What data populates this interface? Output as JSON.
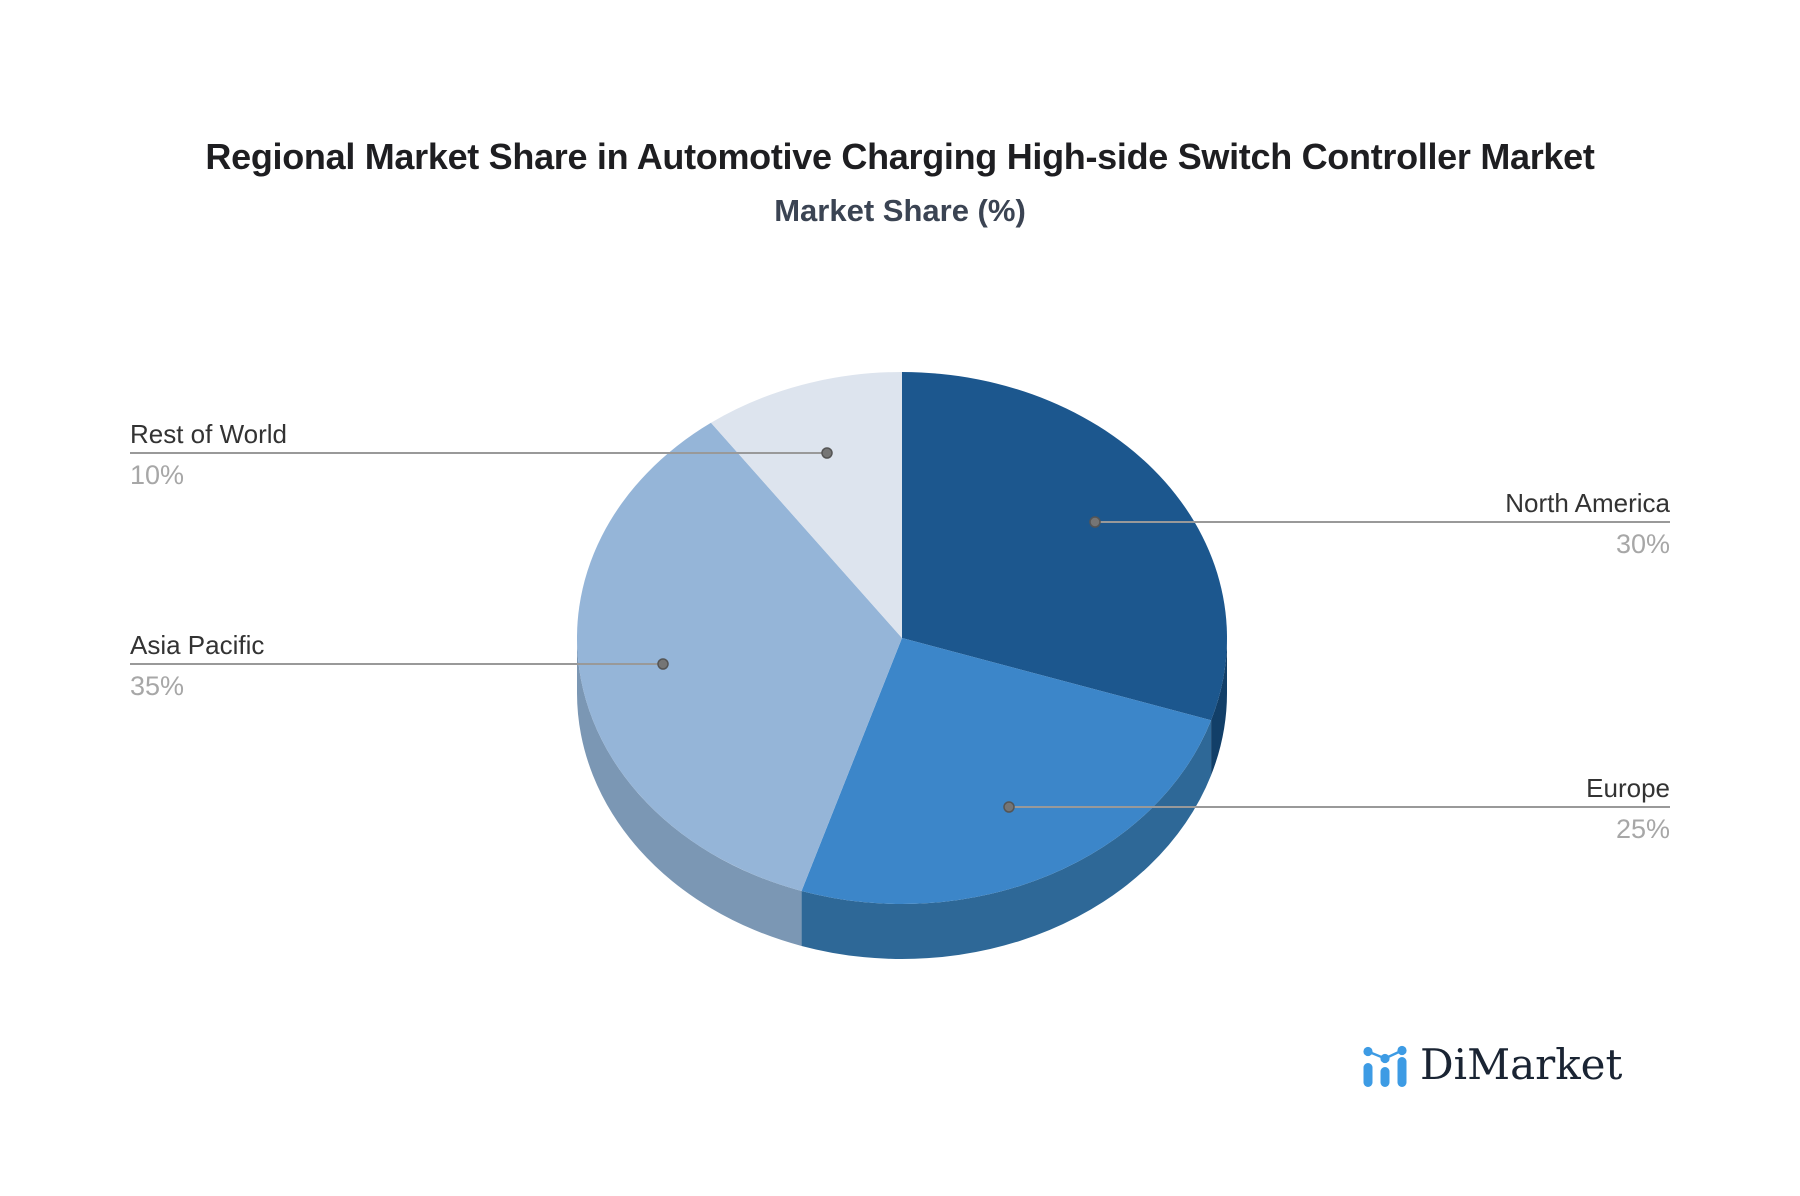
{
  "title": "Regional Market Share in Automotive Charging High-side Switch Controller Market",
  "subtitle": "Market Share (%)",
  "logo": {
    "text": "DiMarket",
    "icon": "bar-chart-with-trend-dots-icon",
    "icon_color": "#3d9be4",
    "text_color": "#1a2433"
  },
  "style": {
    "background": "#ffffff",
    "title_color": "#1e1e21",
    "subtitle_color": "#3b4453",
    "label_name_color": "#333333",
    "label_value_color": "#a7a7a7",
    "leader_line_color": "#999999",
    "leader_dot_color": "#757575"
  },
  "chart_data": {
    "type": "pie",
    "title": "Regional Market Share in Automotive Charging High-side Switch Controller Market",
    "subtitle": "Market Share (%)",
    "unit": "%",
    "style_3d": true,
    "legend": "none",
    "slices": [
      {
        "label": "North America",
        "value": 30,
        "pct_text": "30%",
        "color": "#1c578e",
        "side_color": "#123f68",
        "label_side": "right"
      },
      {
        "label": "Europe",
        "value": 25,
        "pct_text": "25%",
        "color": "#3c86c9",
        "side_color": "#2e6897",
        "label_side": "right"
      },
      {
        "label": "Asia Pacific",
        "value": 35,
        "pct_text": "35%",
        "color": "#95b5d8",
        "side_color": "#7b97b4",
        "label_side": "left"
      },
      {
        "label": "Rest of World",
        "value": 10,
        "pct_text": "10%",
        "color": "#dde4ee",
        "side_color": "#b6c1cf",
        "label_side": "left"
      }
    ],
    "start_angle_deg": 0,
    "direction": "clockwise"
  }
}
